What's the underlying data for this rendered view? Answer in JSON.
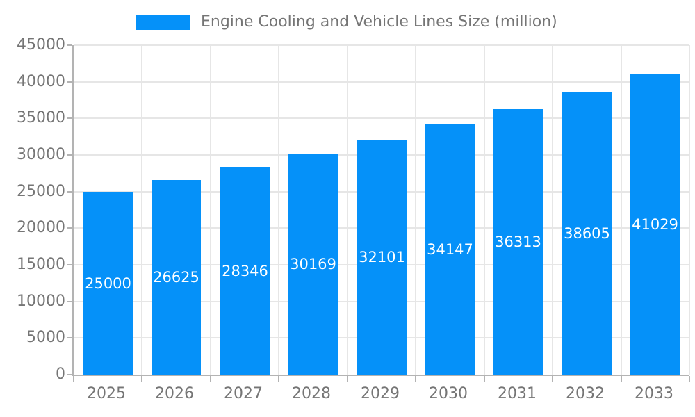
{
  "chart_data": {
    "type": "bar",
    "title": "Engine Cooling and Vehicle Lines Size (million)",
    "legend_position": "top",
    "categories": [
      "2025",
      "2026",
      "2027",
      "2028",
      "2029",
      "2030",
      "2031",
      "2032",
      "2033"
    ],
    "values": [
      25000,
      26625,
      28346,
      30169,
      32101,
      34147,
      36313,
      38605,
      41029
    ],
    "xlabel": "",
    "ylabel": "",
    "ylim": [
      0,
      45000
    ],
    "yticks": [
      0,
      5000,
      10000,
      15000,
      20000,
      25000,
      30000,
      35000,
      40000,
      45000
    ],
    "grid": true,
    "colors": {
      "bar": "#0591f9",
      "bar_value_label": "#ffffff",
      "axis_text": "#757575",
      "grid_line": "#e6e6e6",
      "axis_line": "#b3b3b3",
      "background": "#ffffff"
    }
  }
}
